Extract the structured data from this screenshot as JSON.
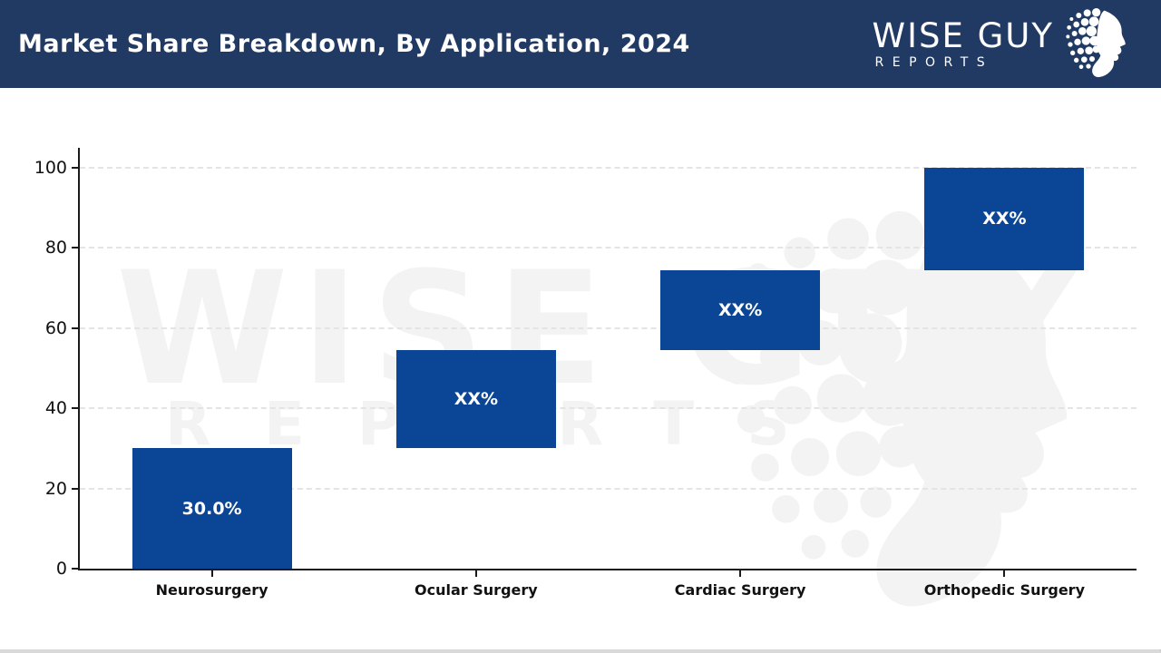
{
  "header": {
    "title": "Market Share Breakdown, By Application, 2024",
    "bg_color": "#213a64",
    "logo": {
      "line1": "WISE GUY",
      "line2": "REPORTS"
    }
  },
  "watermark": {
    "line1": "WISE GUY",
    "line2": "REPORTS"
  },
  "chart_data": {
    "type": "bar",
    "subtype": "waterfall",
    "title": "Market Share Breakdown, By Application, 2024",
    "categories": [
      "Neurosurgery",
      "Ocular Surgery",
      "Cardiac Surgery",
      "Orthopedic Surgery"
    ],
    "segments": [
      {
        "category": "Neurosurgery",
        "start": 0,
        "end": 30,
        "label": "30.0%"
      },
      {
        "category": "Ocular Surgery",
        "start": 30,
        "end": 54.5,
        "label": "XX%"
      },
      {
        "category": "Cardiac Surgery",
        "start": 54.5,
        "end": 74.5,
        "label": "XX%"
      },
      {
        "category": "Orthopedic Surgery",
        "start": 74.5,
        "end": 100,
        "label": "XX%"
      }
    ],
    "xlabel": "",
    "ylabel": "",
    "ylim": [
      0,
      100
    ],
    "yticks": [
      0,
      20,
      40,
      60,
      80,
      100
    ],
    "grid": "horizontal-dashed",
    "legend": "none",
    "bar_color": "#0b4596",
    "bar_label_color": "#ffffff",
    "axis_color": "#1a1a1a",
    "gridline_color": "#e4e4e4"
  }
}
